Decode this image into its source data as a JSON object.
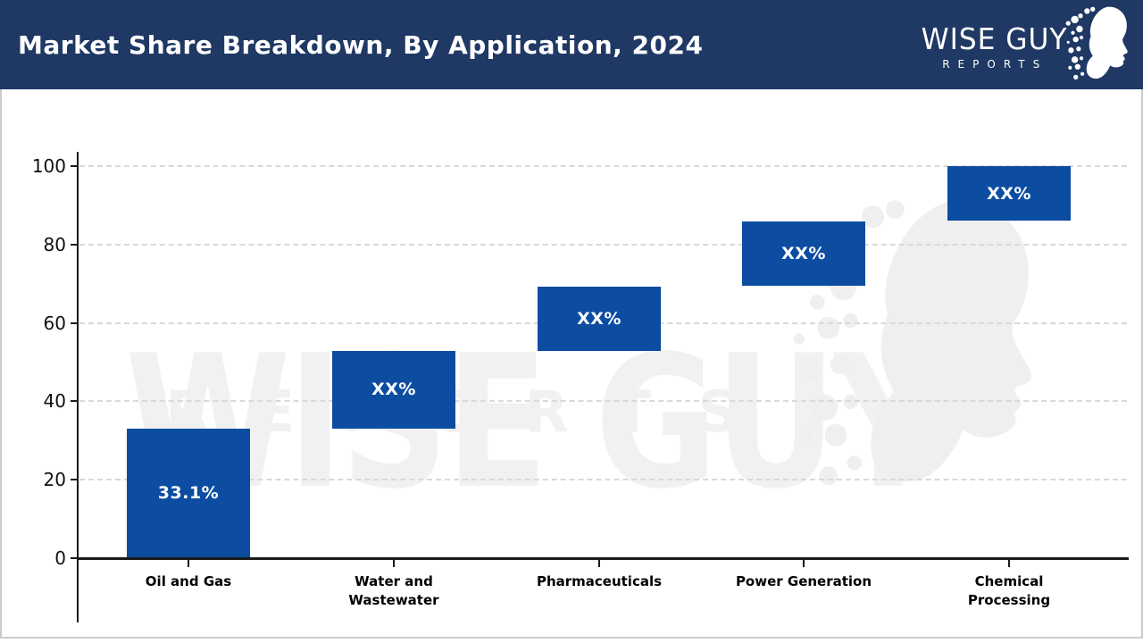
{
  "header": {
    "title": "Market Share Breakdown, By Application, 2024",
    "logo_line1": "WISE GUY",
    "logo_line2": "REPORTS"
  },
  "watermark": {
    "line1": "WISE GUY",
    "line2": "REPORTS"
  },
  "colors": {
    "header_bg": "#1f3864",
    "bar_blue": "#0c4da2",
    "watermark_gray": "#efefef"
  },
  "chart_data": {
    "type": "bar",
    "subtype": "waterfall",
    "title": "Market Share Breakdown, By Application, 2024",
    "categories": [
      "Oil and Gas",
      "Water and Wastewater",
      "Pharmaceuticals",
      "Power Generation",
      "Chemical Processing"
    ],
    "category_label_lines": [
      [
        "Oil and Gas"
      ],
      [
        "Water and",
        "Wastewater"
      ],
      [
        "Pharmaceuticals"
      ],
      [
        "Power Generation"
      ],
      [
        "Chemical",
        "Processing"
      ]
    ],
    "bars": [
      {
        "category": "Oil and Gas",
        "start": 0,
        "end": 33.1,
        "label": "33.1%"
      },
      {
        "category": "Water and Wastewater",
        "start": 33.1,
        "end": 52.8,
        "label": "XX%"
      },
      {
        "category": "Pharmaceuticals",
        "start": 52.8,
        "end": 69.3,
        "label": "XX%"
      },
      {
        "category": "Power Generation",
        "start": 69.5,
        "end": 85.8,
        "label": "XX%"
      },
      {
        "category": "Chemical Processing",
        "start": 86.0,
        "end": 100,
        "label": "XX%"
      }
    ],
    "xlabel": "",
    "ylabel": "",
    "ylim": [
      0,
      100
    ],
    "yticks": [
      0,
      20,
      40,
      60,
      80,
      100
    ],
    "bar_color": "#0c4da2",
    "grid": "horizontal-dashed",
    "legend": "none"
  }
}
